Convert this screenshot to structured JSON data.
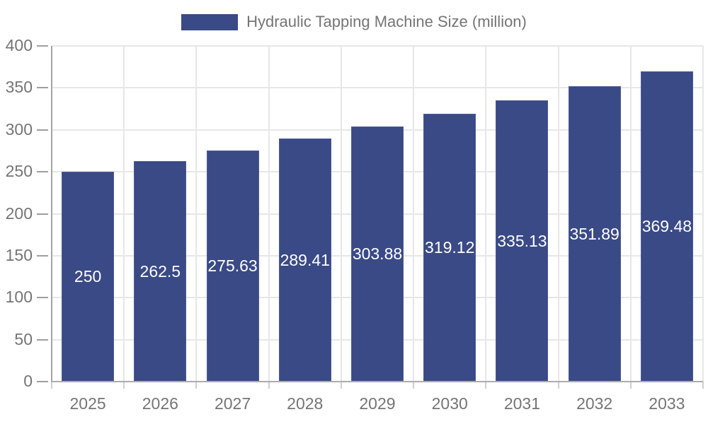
{
  "legend": {
    "label": "Hydraulic Tapping Machine Size (million)"
  },
  "chart_data": {
    "type": "bar",
    "title": "",
    "categories": [
      "2025",
      "2026",
      "2027",
      "2028",
      "2029",
      "2030",
      "2031",
      "2032",
      "2033"
    ],
    "series": [
      {
        "name": "Hydraulic Tapping Machine Size (million)",
        "values": [
          250,
          262.5,
          275.63,
          289.41,
          303.88,
          319.12,
          335.13,
          351.89,
          369.48
        ]
      }
    ],
    "value_labels": [
      "250",
      "262.5",
      "275.63",
      "289.41",
      "303.88",
      "319.12",
      "335.13",
      "351.89",
      "369.48"
    ],
    "xlabel": "",
    "ylabel": "",
    "ylim": [
      0,
      400
    ],
    "yticks": [
      0,
      50,
      100,
      150,
      200,
      250,
      300,
      350,
      400
    ],
    "grid": "horizontal gridlines every 50 units and vertical gridlines at category boundaries",
    "legend_position": "top-center",
    "colors": {
      "bar": "#3A4A86",
      "bar_border": "#4E5C96",
      "bar_label": "#FFFFFF",
      "tick_label": "#757575",
      "legend_text": "#757575",
      "gridline": "#E7E7E7",
      "axis_line": "#A4A4A4"
    }
  }
}
